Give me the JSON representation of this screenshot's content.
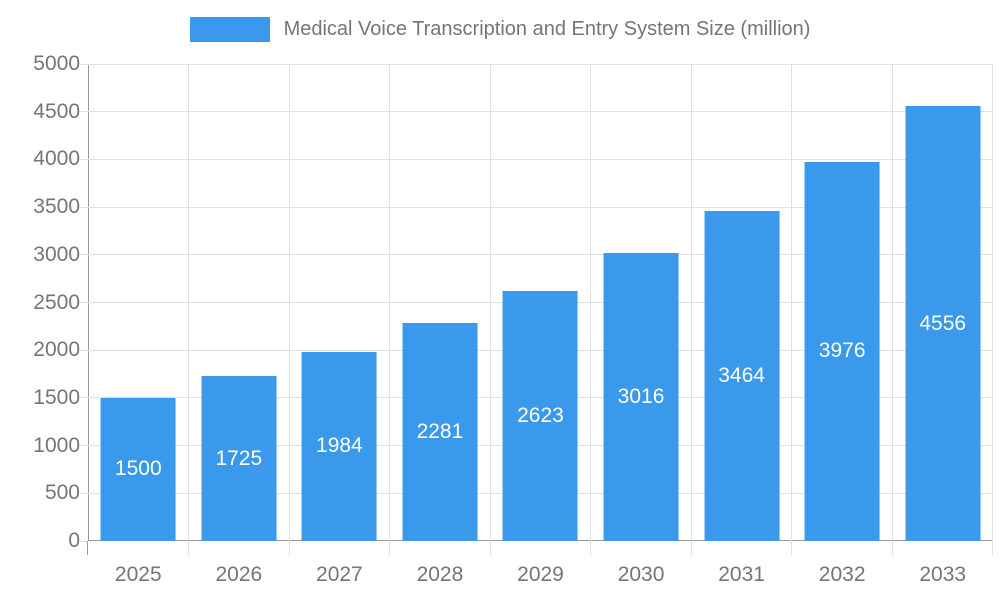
{
  "legend": {
    "label": "Medical Voice Transcription and Entry System Size (million)"
  },
  "chart_data": {
    "type": "bar",
    "title": "",
    "xlabel": "",
    "ylabel": "",
    "categories": [
      "2025",
      "2026",
      "2027",
      "2028",
      "2029",
      "2030",
      "2031",
      "2032",
      "2033"
    ],
    "values": [
      1500,
      1725,
      1984,
      2281,
      2623,
      3016,
      3464,
      3976,
      4556
    ],
    "series_name": "Medical Voice Transcription and Entry System Size (million)",
    "ylim": [
      0,
      5000
    ],
    "ytick_step": 500,
    "grid": true,
    "legend_position": "top-center",
    "value_label_position": "inside-center",
    "bar_width_fraction": 0.745,
    "colors": {
      "bar": "#3b99eb",
      "grid": "#e0e0e0",
      "axis": "#999999",
      "tick_text": "#757575",
      "legend_text": "#757575",
      "value_label": "#ffffff",
      "background": "#ffffff"
    }
  }
}
